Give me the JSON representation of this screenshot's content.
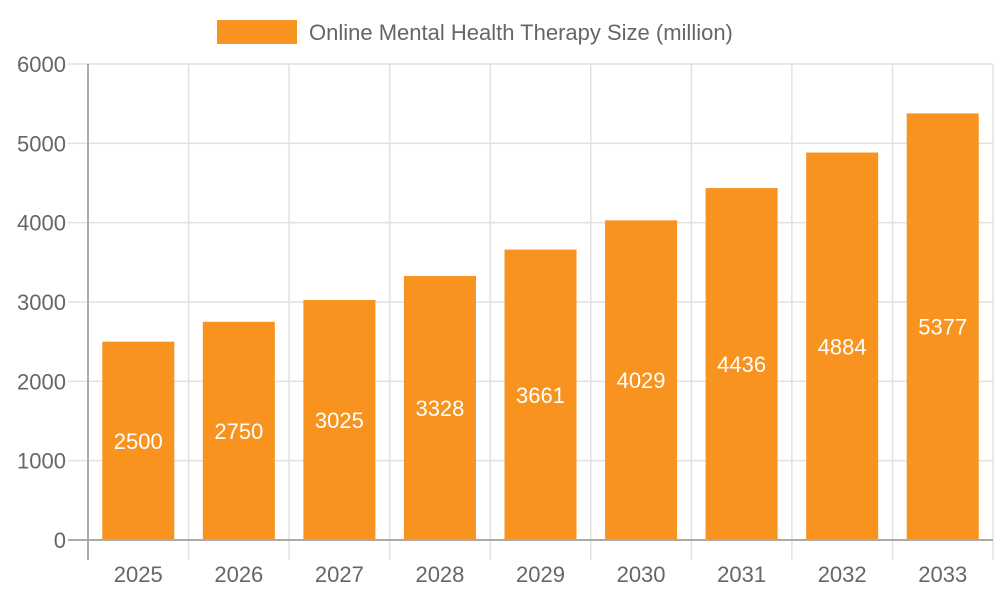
{
  "chart_data": {
    "type": "bar",
    "title": "",
    "xlabel": "",
    "ylabel": "",
    "categories": [
      "2025",
      "2026",
      "2027",
      "2028",
      "2029",
      "2030",
      "2031",
      "2032",
      "2033"
    ],
    "series": [
      {
        "name": "Online Mental Health Therapy Size (million)",
        "values": [
          2500,
          2750,
          3025,
          3328,
          3661,
          4029,
          4436,
          4884,
          5377
        ],
        "color": "#f7931e"
      }
    ],
    "data_labels": [
      "2500",
      "2750",
      "3025",
      "3328",
      "3661",
      "4029",
      "4436",
      "4884",
      "5377"
    ],
    "ylim": [
      0,
      6000
    ],
    "yticks": [
      "0",
      "1000",
      "2000",
      "3000",
      "4000",
      "5000",
      "6000"
    ],
    "grid": true,
    "legend_position": "top"
  }
}
